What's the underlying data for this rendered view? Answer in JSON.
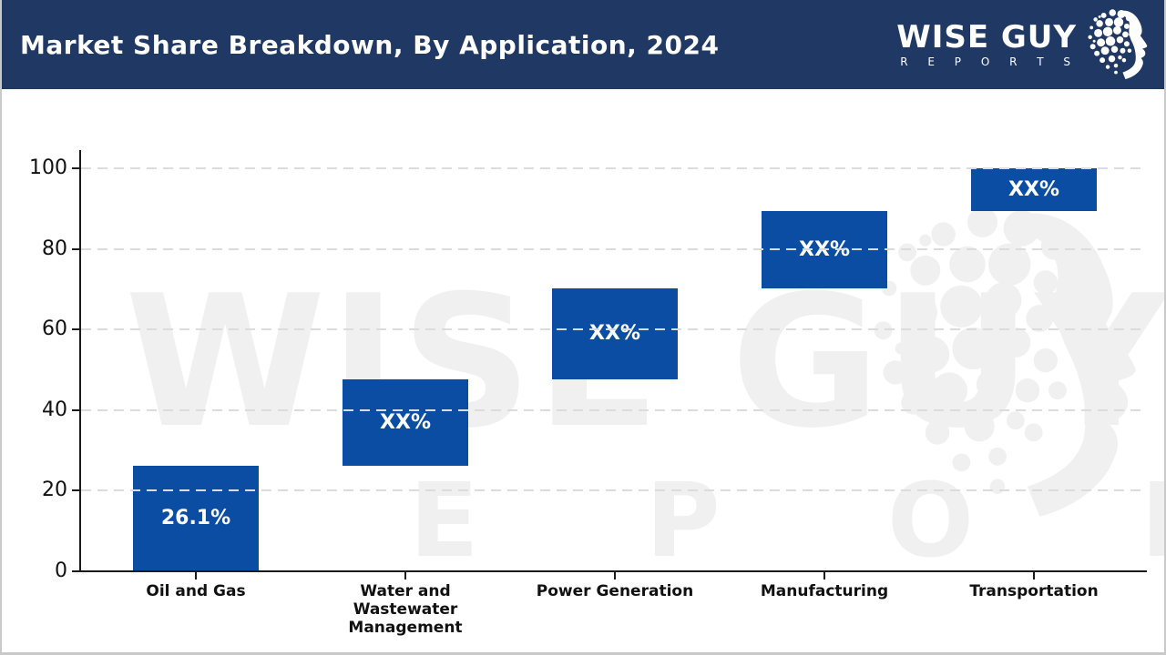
{
  "header": {
    "title": "Market Share Breakdown, By Application, 2024",
    "logo": {
      "line1": "WISE GUY",
      "line2": "R E P O R T S"
    }
  },
  "watermark": {
    "line1": "WISE GUY",
    "line2": "R E P O R T S"
  },
  "chart_data": {
    "type": "bar",
    "subtype": "floating-waterfall",
    "title": "Market Share Breakdown, By Application, 2024",
    "categories": [
      "Oil and Gas",
      "Water and Wastewater Management",
      "Power Generation",
      "Manufacturing",
      "Transportation"
    ],
    "series": [
      {
        "name": "Market share (%)",
        "segments": [
          {
            "category": "Oil and Gas",
            "start": 0,
            "end": 26.1,
            "label": "26.1%"
          },
          {
            "category": "Water and Wastewater Management",
            "start": 26.1,
            "end": 47.6,
            "label": "XX%"
          },
          {
            "category": "Power Generation",
            "start": 47.6,
            "end": 70.2,
            "label": "XX%"
          },
          {
            "category": "Manufacturing",
            "start": 70.2,
            "end": 89.4,
            "label": "XX%"
          },
          {
            "category": "Transportation",
            "start": 89.4,
            "end": 100,
            "label": "XX%"
          }
        ]
      }
    ],
    "yticks": [
      0,
      20,
      40,
      60,
      80,
      100
    ],
    "ylim": [
      0,
      105
    ],
    "xlabel": "",
    "ylabel": "",
    "grid": "horizontal-dashed",
    "legend": "none"
  },
  "colors": {
    "header_background": "#203864",
    "bar": "#0b4da2",
    "bar_label_text": "#ffffff",
    "gridline": "#dcdcdc",
    "axis": "#1a1a1a",
    "watermark": "#f0f0f0"
  }
}
